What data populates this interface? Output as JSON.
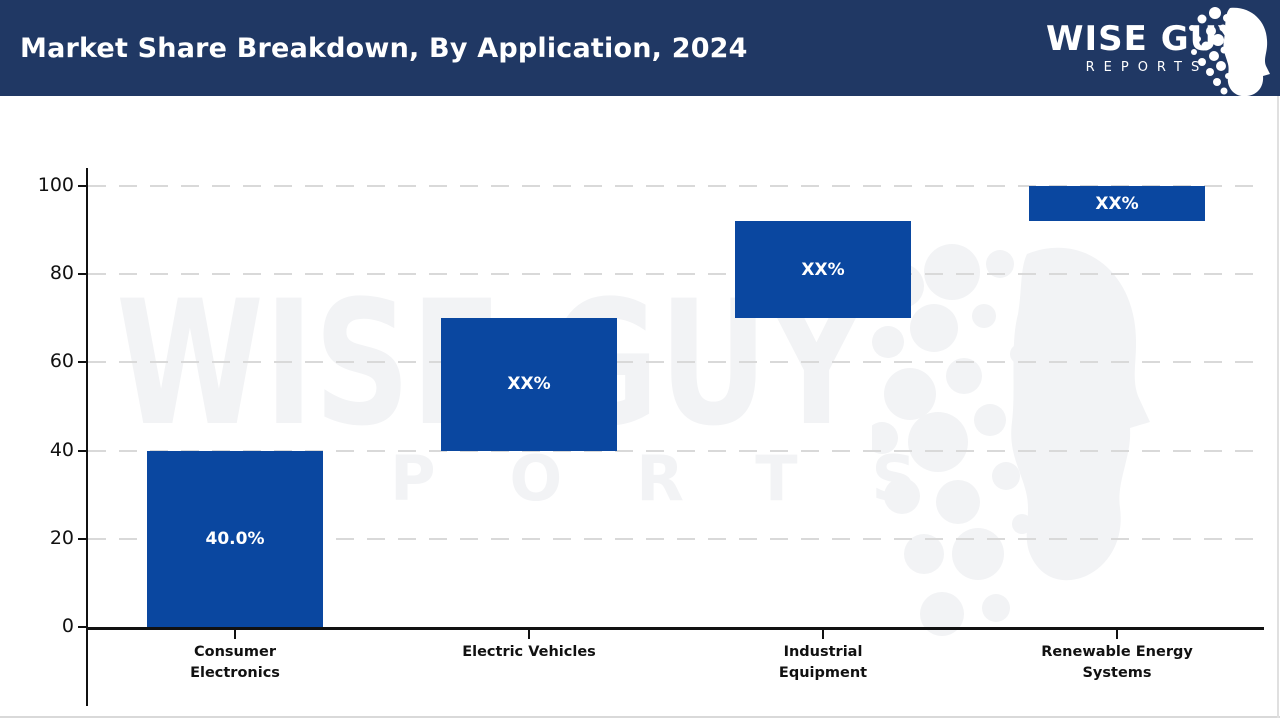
{
  "header": {
    "title": "Market Share Breakdown, By Application, 2024",
    "bg_color": "#203864",
    "logo": {
      "line1": "WISE GUY",
      "line2": "REPORTS"
    }
  },
  "watermark": {
    "line1": "WISE GUY",
    "line2": "REPORTS"
  },
  "chart_data": {
    "type": "bar",
    "subtype": "waterfall",
    "title": "Market Share Breakdown, By Application, 2024",
    "categories": [
      [
        "Consumer",
        "Electronics"
      ],
      [
        "Electric Vehicles"
      ],
      [
        "Industrial",
        "Equipment"
      ],
      [
        "Renewable Energy",
        "Systems"
      ]
    ],
    "segments": [
      {
        "category": "Consumer Electronics",
        "start": 0,
        "end": 40,
        "label": "40.0%"
      },
      {
        "category": "Electric Vehicles",
        "start": 40,
        "end": 70,
        "label": "XX%"
      },
      {
        "category": "Industrial Equipment",
        "start": 70,
        "end": 92,
        "label": "XX%"
      },
      {
        "category": "Renewable Energy Systems",
        "start": 92,
        "end": 100,
        "label": "XX%"
      }
    ],
    "yticks": [
      0,
      20,
      40,
      60,
      80,
      100
    ],
    "ylim": [
      0,
      100
    ],
    "grid": true,
    "grid_style": "dashed-horizontal",
    "legend": false,
    "colors": {
      "bar": "#0A47A0",
      "bar_label": "#FFFFFF",
      "grid_line": "#D9D9D9",
      "axis": "#111111",
      "tick_text": "#111111",
      "watermark": "#F2F3F5"
    }
  }
}
